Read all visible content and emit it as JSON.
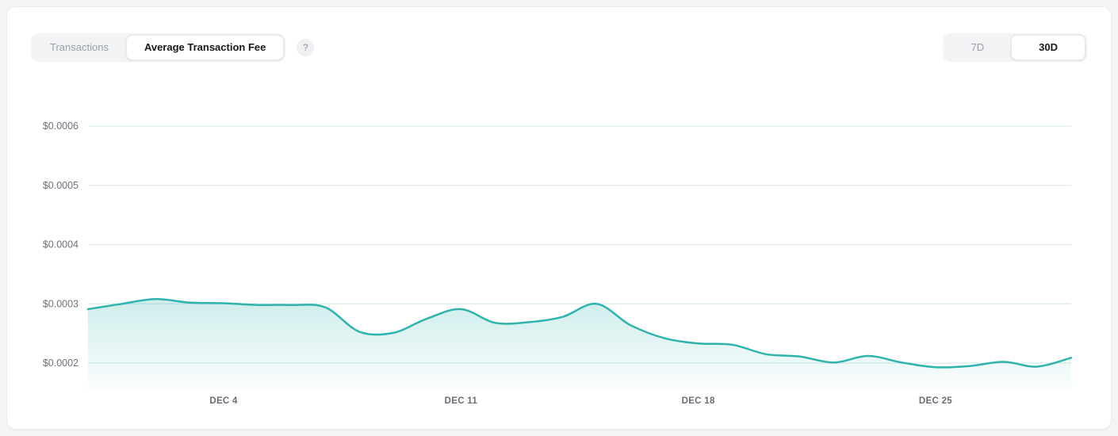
{
  "header": {
    "metric_tabs": [
      {
        "label": "Transactions",
        "active": false
      },
      {
        "label": "Average Transaction Fee",
        "active": true
      }
    ],
    "help_label": "?",
    "range_tabs": [
      {
        "label": "7D",
        "active": false
      },
      {
        "label": "30D",
        "active": true
      }
    ]
  },
  "colors": {
    "accent_line": "#2eb3ad",
    "area_fill": "#2eb3ad",
    "gridline": "#e2edf0",
    "axis_text": "#6d717a",
    "inactive_tab_text": "#9a9ea6",
    "active_tab_text": "#17181c",
    "card_bg": "#ffffff",
    "page_bg": "#f3f4f6"
  },
  "chart_data": {
    "type": "area",
    "title": "Average Transaction Fee",
    "unit": "USD",
    "x": [
      "Nov 30",
      "Dec 1",
      "Dec 2",
      "Dec 3",
      "Dec 4",
      "Dec 5",
      "Dec 6",
      "Dec 7",
      "Dec 8",
      "Dec 9",
      "Dec 10",
      "Dec 11",
      "Dec 12",
      "Dec 13",
      "Dec 14",
      "Dec 15",
      "Dec 16",
      "Dec 17",
      "Dec 18",
      "Dec 19",
      "Dec 20",
      "Dec 21",
      "Dec 22",
      "Dec 23",
      "Dec 24",
      "Dec 25",
      "Dec 26",
      "Dec 27",
      "Dec 28",
      "Dec 29"
    ],
    "values": [
      0.000291,
      0.0003,
      0.000308,
      0.000302,
      0.000301,
      0.000298,
      0.000298,
      0.000294,
      0.000253,
      0.000251,
      0.000275,
      0.000291,
      0.000268,
      0.000269,
      0.000278,
      0.0003,
      0.000264,
      0.000242,
      0.000233,
      0.000231,
      0.000215,
      0.000211,
      0.000201,
      0.000212,
      0.000201,
      0.000193,
      0.000195,
      0.000202,
      0.000194,
      0.000209
    ],
    "y_ticks": [
      0.0002,
      0.0003,
      0.0004,
      0.0005,
      0.0006
    ],
    "y_tick_labels": [
      "$0.0002",
      "$0.0003",
      "$0.0004",
      "$0.0005",
      "$0.0006"
    ],
    "x_tick_labels": [
      "DEC 4",
      "DEC 11",
      "DEC 18",
      "DEC 25"
    ],
    "x_tick_indices": [
      4,
      11,
      18,
      25
    ],
    "ylim": [
      0.00016,
      0.00065
    ],
    "grid": "horizontal",
    "legend": "none",
    "smooth": true
  }
}
